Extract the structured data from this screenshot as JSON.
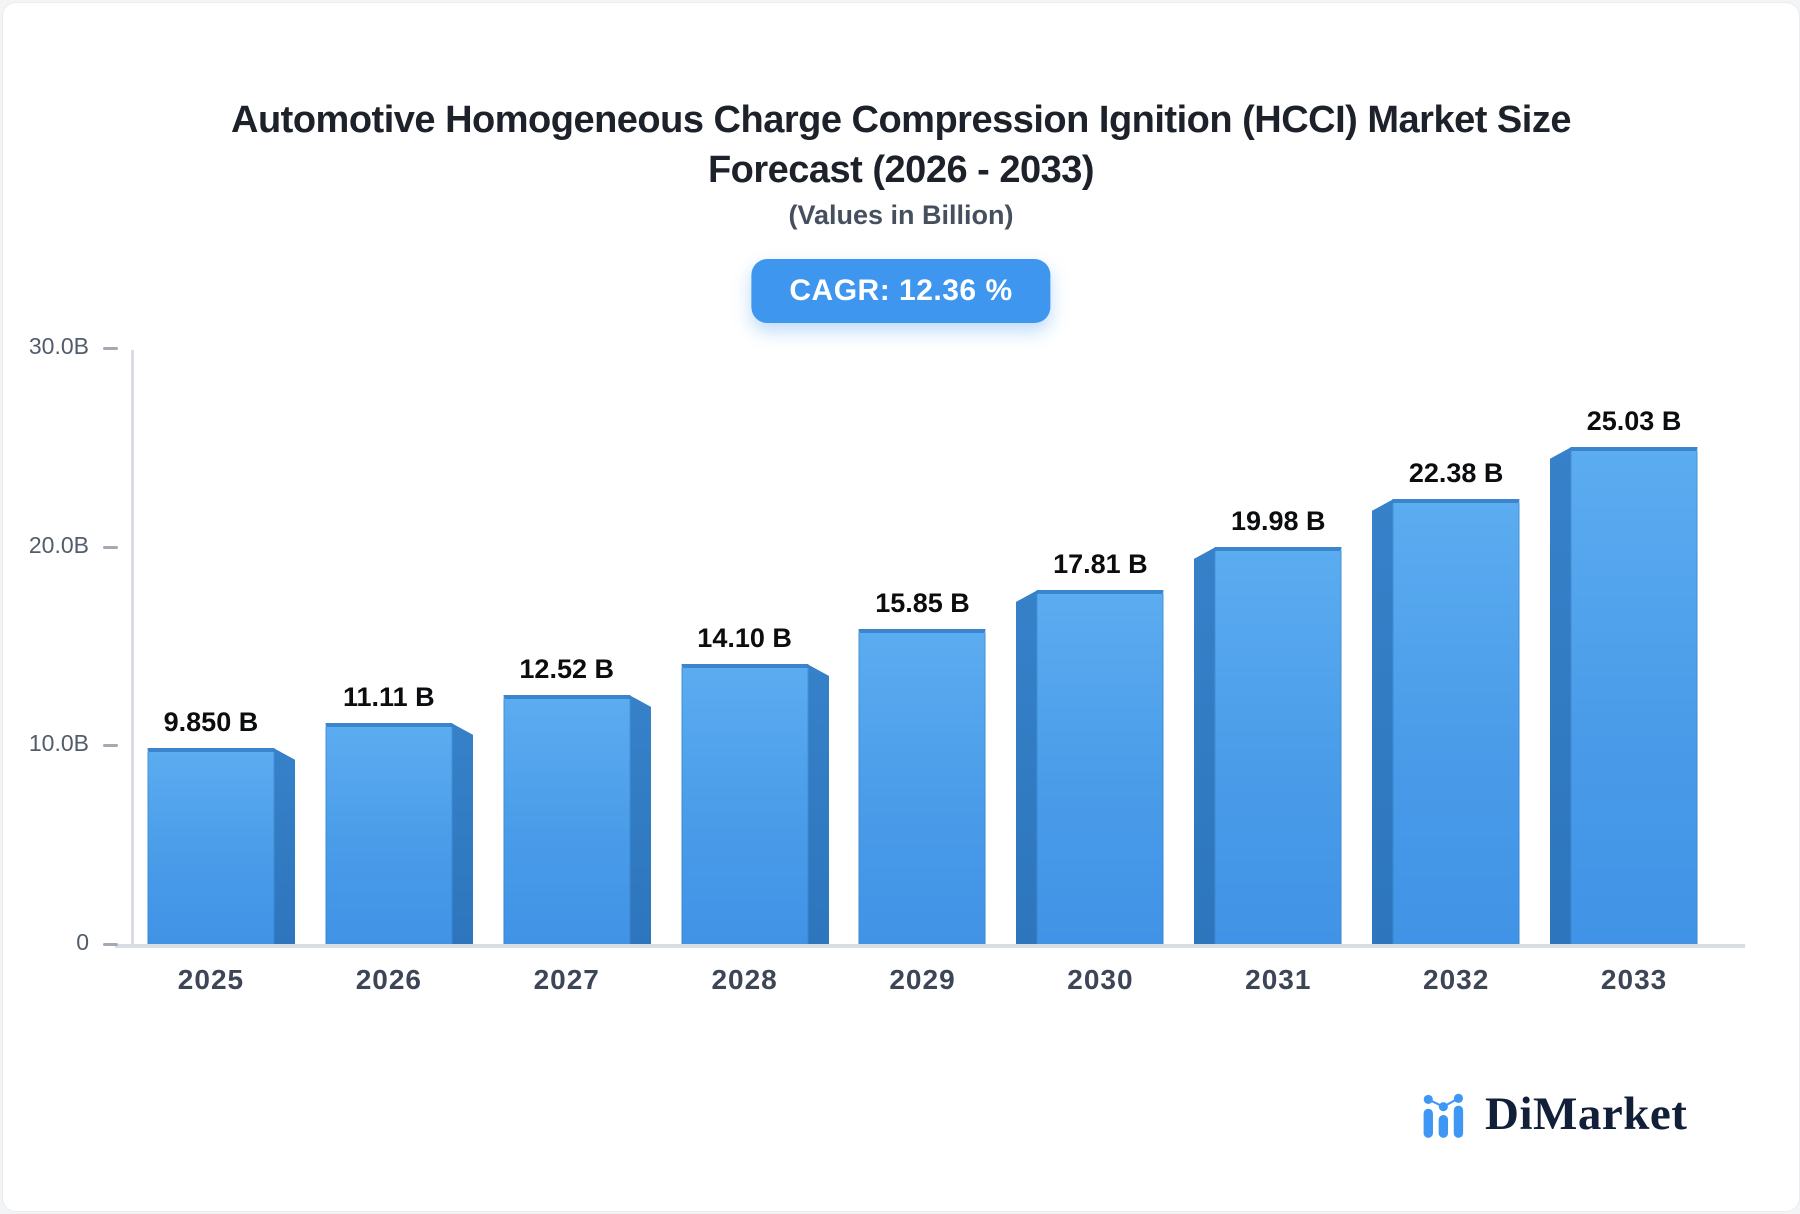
{
  "header": {
    "title_line1": "Automotive Homogeneous Charge Compression Ignition (HCCI) Market Size",
    "title_line2": "Forecast (2026 - 2033)",
    "subtitle": "(Values in Billion)",
    "cagr_badge": "CAGR: 12.36 %"
  },
  "chart_data": {
    "type": "bar",
    "title": "Automotive Homogeneous Charge Compression Ignition (HCCI) Market Size Forecast (2026 - 2033)",
    "subtitle": "(Values in Billion)",
    "unit": "Billion",
    "cagr": "12.36 %",
    "categories": [
      "2025",
      "2026",
      "2027",
      "2028",
      "2029",
      "2030",
      "2031",
      "2032",
      "2033"
    ],
    "values": [
      9.85,
      11.11,
      12.52,
      14.1,
      15.85,
      17.81,
      19.98,
      22.38,
      25.03
    ],
    "value_labels": [
      "9.850 B",
      "11.11 B",
      "12.52 B",
      "14.10 B",
      "15.85 B",
      "17.81 B",
      "19.98 B",
      "22.38 B",
      "25.03 B"
    ],
    "ylim": [
      0,
      30
    ],
    "y_ticks": [
      {
        "label": "0",
        "value": 0
      },
      {
        "label": "10.0B",
        "value": 10
      },
      {
        "label": "20.0B",
        "value": 20
      },
      {
        "label": "30.0B",
        "value": 30
      }
    ],
    "grid": false,
    "legend": "none",
    "bar_style": "3d-extruded, perspective vanishing at center bar"
  },
  "branding": {
    "logo_text": "DiMarket",
    "logo_icon": "bar-chart-with-dots-icon"
  },
  "colors": {
    "bar_face_top": "#5bacf0",
    "bar_face_bottom": "#4093e6",
    "bar_top_edge": "#3a85ce",
    "bar_side": "#2d76be",
    "badge_bg": "#3e96ee",
    "axis": "#d9dce1",
    "tick_text": "#525d6b",
    "x_label_text": "#3c4656",
    "title_text": "#1d2129",
    "logo_blue": "#3f97f5",
    "logo_navy": "#111f38"
  }
}
